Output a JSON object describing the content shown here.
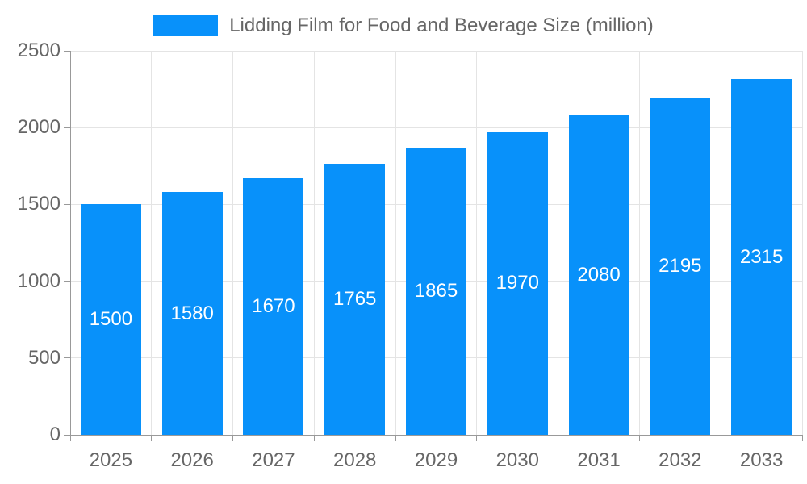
{
  "chart_data": {
    "type": "bar",
    "title": "",
    "legend": "Lidding Film for Food and Beverage Size (million)",
    "legend_position": "top",
    "categories": [
      "2025",
      "2026",
      "2027",
      "2028",
      "2029",
      "2030",
      "2031",
      "2032",
      "2033"
    ],
    "values": [
      1500,
      1580,
      1670,
      1765,
      1865,
      1970,
      2080,
      2195,
      2315
    ],
    "xlabel": "",
    "ylabel": "",
    "ylim": [
      0,
      2500
    ],
    "yticks": [
      0,
      500,
      1000,
      1500,
      2000,
      2500
    ],
    "grid": true,
    "colors": {
      "bar": "#0891FA",
      "bar_value_label": "#FFFFFF",
      "axis_text": "#666666",
      "grid_line": "#E4E4E4",
      "axis_line": "#999999",
      "tick_line": "#999999",
      "background": "#FFFFFF"
    }
  }
}
